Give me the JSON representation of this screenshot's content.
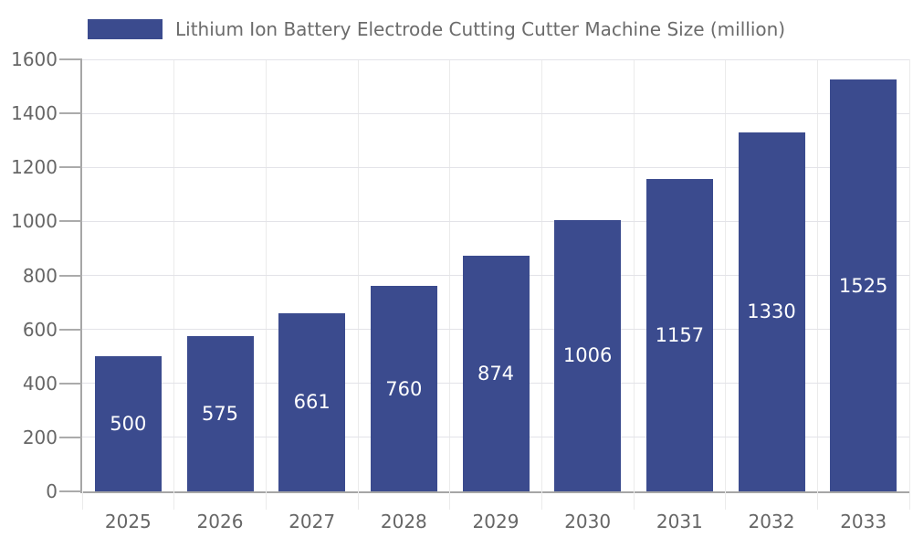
{
  "chart_data": {
    "type": "bar",
    "legend": "Lithium Ion Battery Electrode Cutting Cutter Machine Size (million)",
    "categories": [
      "2025",
      "2026",
      "2027",
      "2028",
      "2029",
      "2030",
      "2031",
      "2032",
      "2033"
    ],
    "values": [
      500,
      575,
      661,
      760,
      874,
      1006,
      1157,
      1330,
      1525
    ],
    "value_labels": [
      "500",
      "575",
      "661",
      "760",
      "874",
      "1006",
      "1157",
      "1330",
      "1525"
    ],
    "ylim": [
      0,
      1600
    ],
    "yticks": [
      0,
      200,
      400,
      600,
      800,
      1000,
      1200,
      1400,
      1600
    ],
    "grid": true,
    "legend_position": "top-left",
    "title": "",
    "xlabel": "",
    "ylabel": "",
    "colors": {
      "bar": "#3B4B8E",
      "bar_label": "#FFFFFF",
      "axis_text": "#666666",
      "legend_text": "#6B6B6B",
      "spine": "#A6A6A6",
      "grid_h": "#E3E3E8",
      "grid_v": "#EBEBEB",
      "y_tick": "#ABABAB",
      "background": "#FFFFFF"
    }
  }
}
